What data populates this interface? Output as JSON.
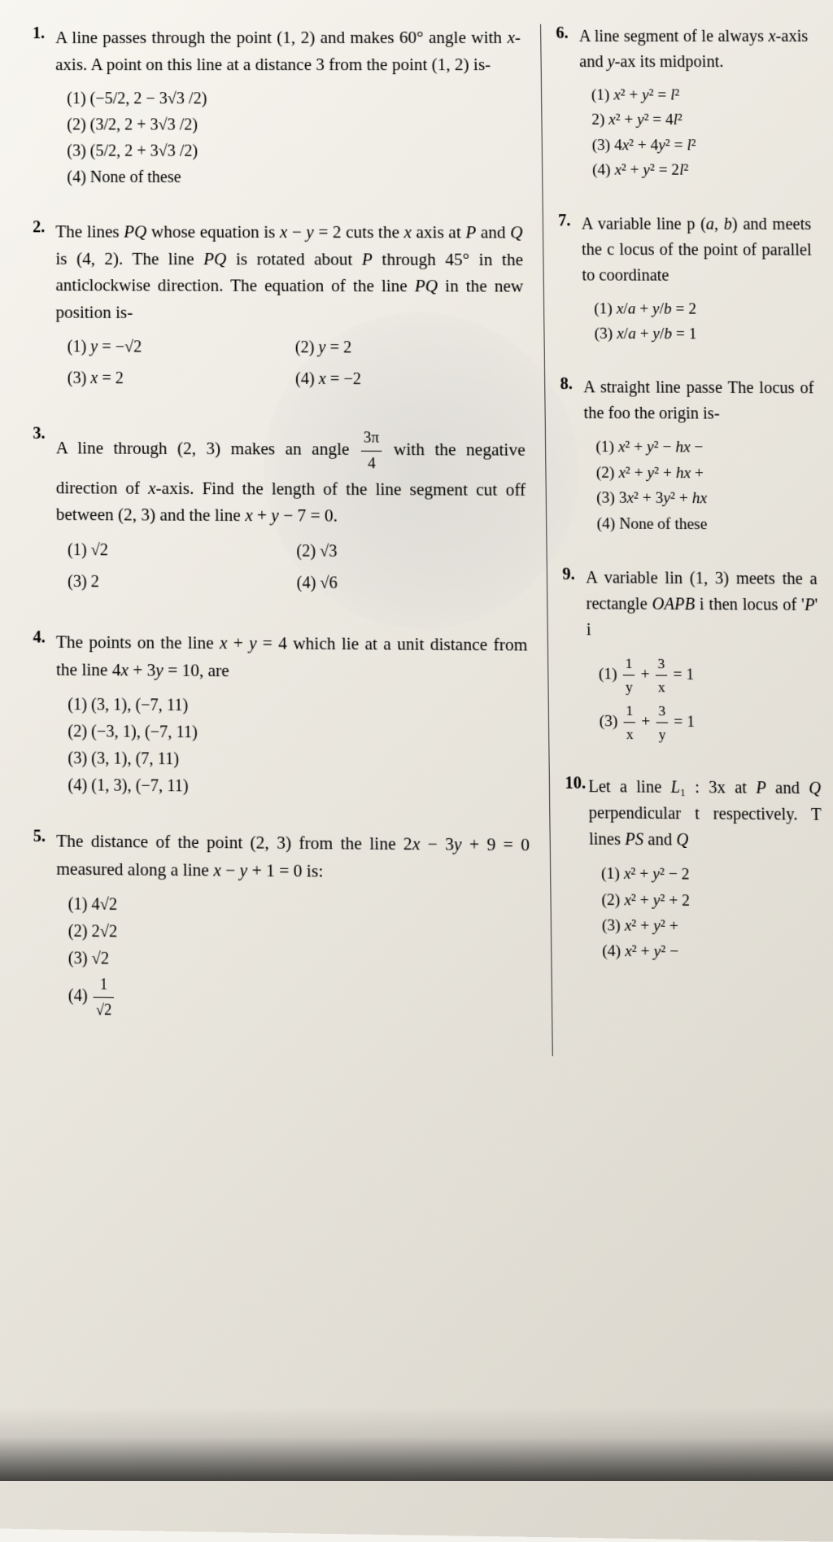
{
  "leftQuestions": [
    {
      "num": "1.",
      "text": "A line passes through the point (1, 2) and makes 60° angle with <i>x</i>-axis. A point on this line at a distance 3 from the point (1, 2) is-",
      "options": [
        "(1) (−5/2, 2 − 3√3 /2)",
        "(2) (3/2, 2 + 3√3 /2)",
        "(3) (5/2, 2 + 3√3 /2)",
        "(4) None of these"
      ],
      "layout": "single"
    },
    {
      "num": "2.",
      "text": "The lines <i>PQ</i> whose equation is <i>x</i> − <i>y</i> = 2 cuts the <i>x</i> axis at <i>P</i> and <i>Q</i> is (4, 2). The line <i>PQ</i> is rotated about <i>P</i> through 45° in the anticlockwise direction. The equation of the line <i>PQ</i> in the new position is-",
      "options": [
        "(1) <i>y</i> = −√2",
        "(2) <i>y</i> = 2",
        "(3) <i>x</i> = 2",
        "(4) <i>x</i> = −2"
      ],
      "layout": "double"
    },
    {
      "num": "3.",
      "text": "A line through (2, 3) makes an angle <span class='frac'><span class='num'>3π</span><span class='den'>4</span></span> with the negative direction of <i>x</i>-axis. Find the length of the line segment cut off between (2, 3) and the line <i>x</i> + <i>y</i> − 7 = 0.",
      "options": [
        "(1) √2",
        "(2) √3",
        "(3) 2",
        "(4) √6"
      ],
      "layout": "double"
    },
    {
      "num": "4.",
      "text": "The points on the line <i>x</i> + <i>y</i> = 4 which lie at a unit distance from the line 4<i>x</i> + 3<i>y</i> = 10, are",
      "options": [
        "(1) (3, 1), (−7, 11)",
        "(2) (−3, 1), (−7, 11)",
        "(3) (3, 1), (7, 11)",
        "(4) (1, 3), (−7, 11)"
      ],
      "layout": "single"
    },
    {
      "num": "5.",
      "text": "The distance of the point (2, 3) from the line 2<i>x</i> − 3<i>y</i> + 9 = 0 measured along a line <i>x</i> − <i>y</i> + 1 = 0 is:",
      "options": [
        "(1) 4√2",
        "(2) 2√2",
        "(3) √2",
        "(4) <span class='frac'><span class='num'>1</span><span class='den'>√2</span></span>"
      ],
      "layout": "single"
    }
  ],
  "rightQuestions": [
    {
      "num": "6.",
      "text": "A line segment of le always <i>x</i>-axis and <i>y</i>-ax its midpoint.",
      "options": [
        "(1) <i>x</i>² + <i>y</i>² = <i>l</i>²",
        "2) <i>x</i>² + <i>y</i>² = 4<i>l</i>²",
        "(3) 4<i>x</i>² + 4<i>y</i>² = <i>l</i>²",
        "(4) <i>x</i>² + <i>y</i>² = 2<i>l</i>²"
      ],
      "layout": "single"
    },
    {
      "num": "7.",
      "text": "A variable line p (<i>a</i>, <i>b</i>) and meets the c locus of the point of parallel to coordinate",
      "options": [
        "(1) <i>x</i>/<i>a</i> + <i>y</i>/<i>b</i> = 2",
        "(3) <i>x</i>/<i>a</i> + <i>y</i>/<i>b</i> = 1"
      ],
      "layout": "single"
    },
    {
      "num": "8.",
      "text": "A straight line passe The locus of the foo the origin is-",
      "options": [
        "(1) <i>x</i>² + <i>y</i>² − <i>hx</i> −",
        "(2) <i>x</i>² + <i>y</i>² + <i>hx</i> +",
        "(3) 3<i>x</i>² + 3<i>y</i>² + <i>hx</i>",
        "(4) None of these"
      ],
      "layout": "single"
    },
    {
      "num": "9.",
      "text": "A variable lin (1, 3) meets the a rectangle <i>OAPB</i> i then locus of '<i>P</i>' i",
      "options": [
        "(1) <span class='frac'><span class='num'>1</span><span class='den'>y</span></span> + <span class='frac'><span class='num'>3</span><span class='den'>x</span></span> = 1",
        "(3) <span class='frac'><span class='num'>1</span><span class='den'>x</span></span> + <span class='frac'><span class='num'>3</span><span class='den'>y</span></span> = 1"
      ],
      "layout": "single"
    },
    {
      "num": "10.",
      "text": "Let a line <i>L</i>₁ : 3x at <i>P</i> and <i>Q</i> perpendicular t respectively. T lines <i>PS</i> and <i>Q</i>",
      "options": [
        "(1) <i>x</i>² + <i>y</i>² − 2",
        "(2) <i>x</i>² + <i>y</i>² + 2",
        "(3) <i>x</i>² + <i>y</i>² +",
        "(4) <i>x</i>² + <i>y</i>² −"
      ],
      "layout": "single"
    }
  ]
}
